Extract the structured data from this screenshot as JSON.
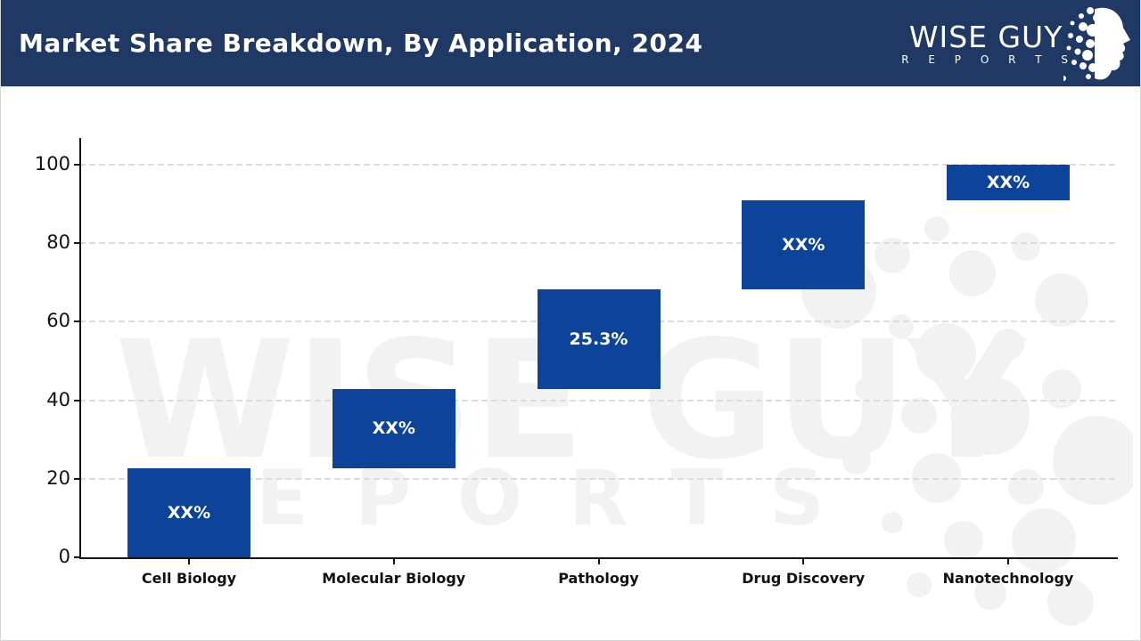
{
  "header": {
    "title": "Market Share Breakdown, By Application, 2024",
    "logo": {
      "line1": "WISE GUY",
      "line2": "R E P O R T S"
    }
  },
  "watermark": {
    "line1": "WISE GUY",
    "line2": "REPORTS"
  },
  "colors": {
    "header_bg": "#1f3864",
    "bar": "#0d4499",
    "grid": "#dcdcdc",
    "axis": "#151515",
    "watermark": "#f2f2f3",
    "bar_label": "#ffffff"
  },
  "chart_data": {
    "type": "bar",
    "subtype": "waterfall",
    "title": "Market Share Breakdown, By Application, 2024",
    "categories": [
      "Cell Biology",
      "Molecular Biology",
      "Pathology",
      "Drug Discovery",
      "Nanotechnology"
    ],
    "segments": [
      {
        "category": "Cell Biology",
        "start": 0,
        "end": 22.7,
        "value": 22.7,
        "label": "XX%"
      },
      {
        "category": "Molecular Biology",
        "start": 22.7,
        "end": 42.9,
        "value": 20.2,
        "label": "XX%"
      },
      {
        "category": "Pathology",
        "start": 42.9,
        "end": 68.2,
        "value": 25.3,
        "label": "25.3%"
      },
      {
        "category": "Drug Discovery",
        "start": 68.2,
        "end": 90.9,
        "value": 22.7,
        "label": "XX%"
      },
      {
        "category": "Nanotechnology",
        "start": 90.9,
        "end": 100,
        "value": 9.1,
        "label": "XX%"
      }
    ],
    "yticks": [
      0,
      20,
      40,
      60,
      80,
      100
    ],
    "ylim": [
      0,
      106
    ],
    "xlabel": "",
    "ylabel": "",
    "grid": "horizontal-dashed",
    "legend": "none"
  }
}
